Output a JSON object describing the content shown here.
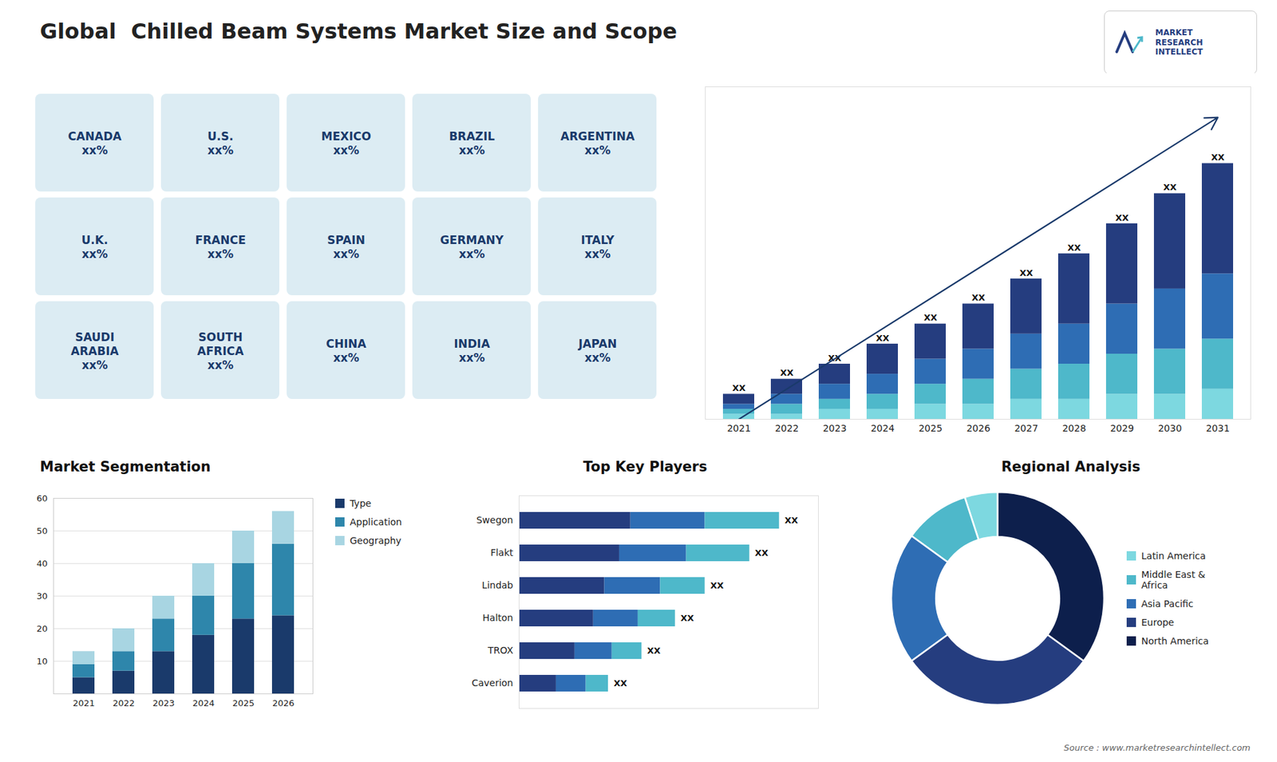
{
  "title": "Global  Chilled Beam Systems Market Size and Scope",
  "logo_text": "MARKET\nRESEARCH\nINTELLECT",
  "source": "Source : www.marketresearchintellect.com",
  "chart_data": [
    {
      "type": "map",
      "color": "#1a3a6b",
      "labels": [
        "CANADA\nxx%",
        "U.S.\nxx%",
        "MEXICO\nxx%",
        "BRAZIL\nxx%",
        "ARGENTINA\nxx%",
        "U.K.\nxx%",
        "FRANCE\nxx%",
        "SPAIN\nxx%",
        "GERMANY\nxx%",
        "ITALY\nxx%",
        "SAUDI\nARABIA\nxx%",
        "SOUTH\nAFRICA\nxx%",
        "CHINA\nxx%",
        "INDIA\nxx%",
        "JAPAN\nxx%"
      ]
    },
    {
      "type": "bar",
      "stacked": true,
      "categories": [
        "2021",
        "2022",
        "2023",
        "2024",
        "2025",
        "2026",
        "2027",
        "2028",
        "2029",
        "2030",
        "2031"
      ],
      "series": [
        {
          "color": "#7dd8e0",
          "values": [
            1,
            1,
            2,
            2,
            3,
            3,
            4,
            4,
            5,
            5,
            6
          ]
        },
        {
          "color": "#4eb8ca",
          "values": [
            1,
            2,
            2,
            3,
            4,
            5,
            6,
            7,
            8,
            9,
            10
          ]
        },
        {
          "color": "#2e6db4",
          "values": [
            1,
            2,
            3,
            4,
            5,
            6,
            7,
            8,
            10,
            12,
            13
          ]
        },
        {
          "color": "#253d7f",
          "values": [
            2,
            3,
            4,
            6,
            7,
            9,
            11,
            14,
            16,
            19,
            22
          ]
        }
      ],
      "ylim": [
        0,
        66.3
      ],
      "tick_labels": "x",
      "data_labels": true,
      "value_labels": [
        "XX",
        "XX",
        "XX",
        "XX",
        "XX",
        "XX",
        "XX",
        "XX",
        "XX",
        "XX",
        "XX"
      ],
      "trend_arrow": {
        "color": "#1a3a6b"
      }
    },
    {
      "type": "bar",
      "title": "Market Segmentation",
      "stacked": true,
      "categories": [
        "2021",
        "2022",
        "2023",
        "2024",
        "2025",
        "2026"
      ],
      "series": [
        {
          "name": "Type",
          "color": "#1a3a6b",
          "values": [
            5,
            7,
            13,
            18,
            23,
            24
          ]
        },
        {
          "name": "Application",
          "color": "#2e86ab",
          "values": [
            4,
            6,
            10,
            12,
            17,
            22
          ]
        },
        {
          "name": "Geography",
          "color": "#a8d5e2",
          "values": [
            4,
            7,
            7,
            10,
            10,
            10
          ]
        }
      ],
      "ylim": [
        0,
        60
      ],
      "yticks": [
        10,
        20,
        30,
        40,
        50,
        60
      ],
      "grid": true,
      "legend": "right"
    },
    {
      "type": "bar",
      "title": "Top Key Players",
      "orientation": "horizontal",
      "stacked": true,
      "categories": [
        "Swegon",
        "Flakt",
        "Lindab",
        "Halton",
        "TROX",
        "Caverion"
      ],
      "series": [
        {
          "color": "#253d7f",
          "values": [
            30,
            27,
            23,
            20,
            15,
            10
          ]
        },
        {
          "color": "#2e6db4",
          "values": [
            20,
            18,
            15,
            12,
            10,
            8
          ]
        },
        {
          "color": "#4eb8ca",
          "values": [
            20,
            17,
            12,
            10,
            8,
            6
          ]
        }
      ],
      "xlim": [
        0,
        80.5
      ],
      "tick_labels": "y",
      "data_labels": true,
      "value_labels": [
        "XX",
        "XX",
        "XX",
        "XX",
        "XX",
        "XX"
      ]
    },
    {
      "type": "donut",
      "title": "Regional Analysis",
      "categories": [
        "Latin America",
        "Middle East &\nAfrica",
        "Asia Pacific",
        "Europe",
        "North America"
      ],
      "values": [
        5,
        10,
        20,
        30,
        35
      ],
      "colors": [
        "#7dd8e0",
        "#4eb8ca",
        "#2e6db4",
        "#253d7f",
        "#0d1f4c"
      ],
      "legend": "right"
    }
  ]
}
